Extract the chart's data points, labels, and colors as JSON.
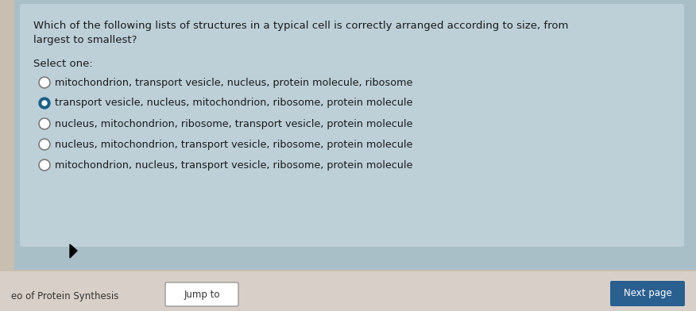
{
  "question_line1": "Which of the following lists of structures in a typical cell is correctly arranged according to size, from",
  "question_line2": "largest to smallest?",
  "select_label": "Select one:",
  "options": [
    "mitochondrion, transport vesicle, nucleus, protein molecule, ribosome",
    "transport vesicle, nucleus, mitochondrion, ribosome, protein molecule",
    "nucleus, mitochondrion, ribosome, transport vesicle, protein molecule",
    "nucleus, mitochondrion, transport vesicle, ribosome, protein molecule",
    "mitochondrion, nucleus, transport vesicle, ribosome, protein molecule"
  ],
  "selected_index": 1,
  "outer_bg": "#c8bfb0",
  "left_strip_color": "#c8bfb0",
  "main_bg_color": "#a8bfc8",
  "card_color": "#bdd0d8",
  "bottom_bg_color": "#d8d0c8",
  "text_color": "#1a1a1a",
  "radio_fill_color": "#1a5f8a",
  "radio_border_color": "#777777",
  "next_button_color": "#2a6090",
  "next_button_text": "Next page",
  "bottom_left_text": "eo of Protein Synthesis",
  "jump_to_text": "Jump to",
  "question_fontsize": 9.5,
  "option_fontsize": 9.2,
  "select_fontsize": 9.5
}
